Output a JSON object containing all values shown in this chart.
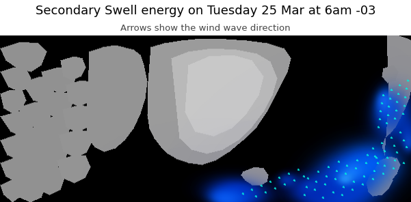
{
  "title": "Secondary Swell energy on Tuesday 25 Mar at 6am -03",
  "subtitle": "Arrows show the wind wave direction",
  "title_fontsize": 13,
  "subtitle_fontsize": 9.5,
  "title_color": "#000000",
  "subtitle_color": "#444444",
  "background_color": "#000000",
  "title_bg_color": "#ffffff",
  "fig_width": 6.01,
  "fig_height": 2.96,
  "dpi": 100
}
